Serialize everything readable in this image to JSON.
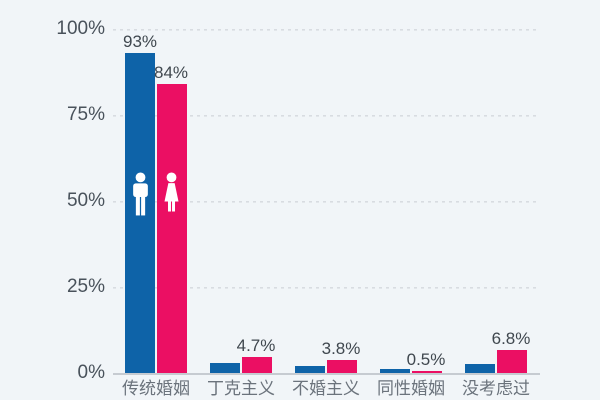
{
  "chart_data": {
    "type": "bar",
    "title": "",
    "categories": [
      "传统婚姻",
      "丁克主义",
      "不婚主义",
      "同性婚姻",
      "没考虑过"
    ],
    "series": [
      {
        "key": "male",
        "color": "#0e63a8",
        "values": [
          93,
          2.9,
          2.0,
          1.2,
          2.6
        ]
      },
      {
        "key": "female",
        "color": "#eb0f63",
        "values": [
          84,
          4.7,
          3.8,
          0.5,
          6.8
        ]
      }
    ],
    "value_labels": [
      {
        "category_index": 0,
        "series": "male",
        "text": "93%"
      },
      {
        "category_index": 0,
        "series": "female",
        "text": "84%"
      },
      {
        "category_index": 1,
        "series": "female",
        "text": "4.7%"
      },
      {
        "category_index": 2,
        "series": "female",
        "text": "3.8%"
      },
      {
        "category_index": 3,
        "series": "female",
        "text": "0.5%"
      },
      {
        "category_index": 4,
        "series": "female",
        "text": "6.8%"
      }
    ],
    "yticks": [
      {
        "label": "100%",
        "value": 100
      },
      {
        "label": "75%",
        "value": 75
      },
      {
        "label": "50%",
        "value": 50
      },
      {
        "label": "25%",
        "value": 25
      },
      {
        "label": "0%",
        "value": 0
      }
    ],
    "ylim": [
      0,
      100
    ],
    "xlabel": "",
    "ylabel": "",
    "grid": "horizontal-dashed",
    "legend": "none",
    "icons": [
      {
        "name": "male-icon",
        "series": "male",
        "category_index": 0
      },
      {
        "name": "female-icon",
        "series": "female",
        "category_index": 0
      }
    ]
  },
  "colors": {
    "background": "#f1f5f8",
    "male_bar": "#0e63a8",
    "female_bar": "#eb0f63",
    "tick_text": "#49525b",
    "value_text": "#3f474e",
    "category_text": "#6b737c",
    "gridline": "#d8dce1",
    "axis_line": "#c6cbd1",
    "icon": "#ffffff"
  }
}
